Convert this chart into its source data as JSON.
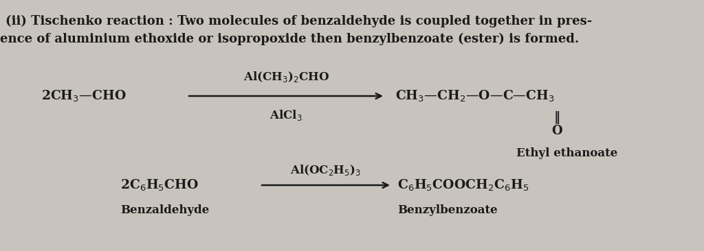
{
  "title_line1": "(ii) Tischenko reaction : Two molecules of benzaldehyde is coupled together in pres-",
  "title_line2": "ence of aluminium ethoxide or isopropoxide then benzylbenzoate (ester) is formed.",
  "bg_color": "#c8c3bc",
  "text_color": "#1a1a1a",
  "fig_width": 10.24,
  "fig_height": 3.66,
  "dpi": 100
}
